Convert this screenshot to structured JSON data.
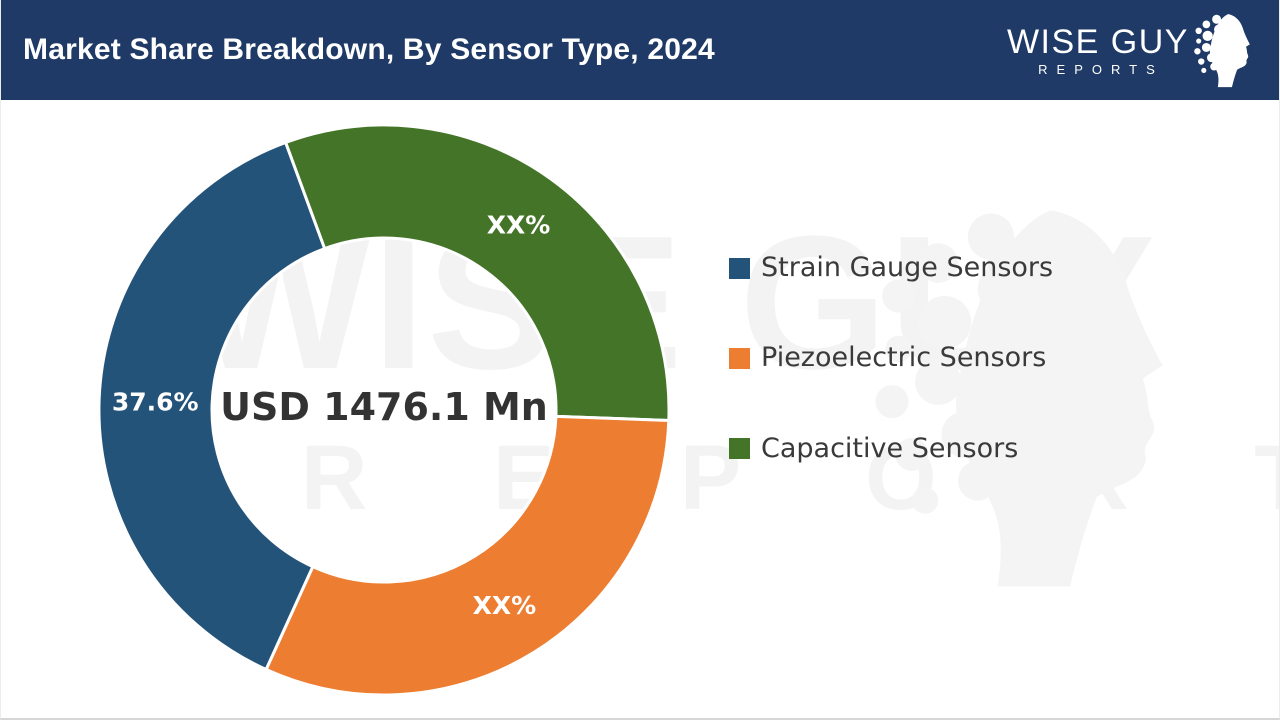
{
  "header": {
    "title": "Market Share Breakdown, By Sensor Type, 2024",
    "logo": {
      "line1": "WISE GUY",
      "line2": "REPORTS",
      "icon": "head-profile-dots-icon"
    }
  },
  "watermark": {
    "line1": "WISE GUY",
    "line2": "R E P O R T S",
    "icon": "head-profile-dots-icon"
  },
  "chart_data": {
    "type": "pie",
    "subtype": "donut",
    "title": "Market Share Breakdown, By Sensor Type, 2024",
    "center_label": "USD 1476.1 Mn",
    "start_angle_deg_cw_from_north": -20.2,
    "slices": [
      {
        "name": "Capacitive Sensors",
        "value_pct": 31.2,
        "label": "XX%",
        "color": "#447428"
      },
      {
        "name": "Piezoelectric Sensors",
        "value_pct": 31.2,
        "label": "XX%",
        "color": "#ED7D31"
      },
      {
        "name": "Strain Gauge Sensors",
        "value_pct": 37.6,
        "label": "37.6%",
        "color": "#24537A"
      }
    ],
    "legend": [
      {
        "label": "Strain Gauge Sensors",
        "color": "#24537A"
      },
      {
        "label": "Piezoelectric Sensors",
        "color": "#ED7D31"
      },
      {
        "label": "Capacitive Sensors",
        "color": "#447428"
      }
    ],
    "legend_position": "right",
    "gap_color": "#FFFFFF"
  },
  "colors": {
    "header_bg": "#1F3A66",
    "legend_text": "#3A3A3A",
    "center_text": "#333333",
    "watermark": "#F3F3F3",
    "bottom_border": "#D6D6D6"
  }
}
